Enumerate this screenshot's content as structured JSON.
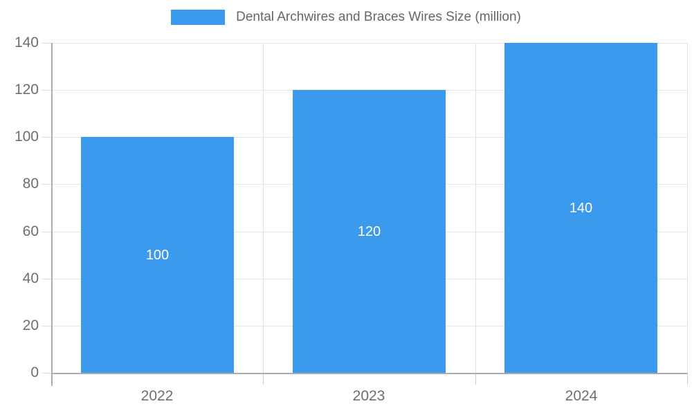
{
  "chart_data": {
    "type": "bar",
    "title": "Dental Archwires and Braces Wires Size (million)",
    "categories": [
      "2022",
      "2023",
      "2024"
    ],
    "values": [
      100,
      120,
      140
    ],
    "data_labels": [
      "100",
      "120",
      "140"
    ],
    "xlabel": "",
    "ylabel": "",
    "ylim": [
      0,
      140
    ],
    "yticks": [
      0,
      20,
      40,
      60,
      80,
      100,
      120,
      140
    ],
    "grid": true,
    "legend_position": "top-center"
  },
  "legend": {
    "label": "Dental Archwires and Braces Wires Size (million)"
  },
  "colors": {
    "bar": "#3b9aee",
    "bar_label": "#ffffff",
    "grid": "#e6e6e6",
    "axis": "#ababab",
    "tick_text": "#6e6e6e",
    "legend_text": "#666666"
  }
}
